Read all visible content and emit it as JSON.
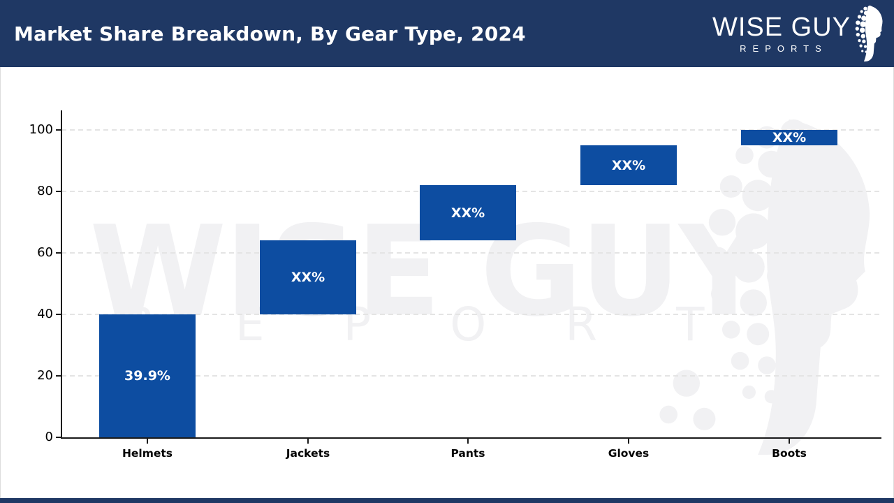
{
  "header": {
    "title": "Market Share Breakdown, By Gear Type, 2024",
    "background_color": "#1f3864",
    "logo": {
      "line1": "WISE GUY",
      "line2": "REPORTS"
    }
  },
  "watermark": {
    "line1": "WISE GUY",
    "line2": "R E P O R T S"
  },
  "footer": {
    "background_color": "#1f3864"
  },
  "chart_data": {
    "type": "bar",
    "subtype": "waterfall",
    "title": "Market Share Breakdown, By Gear Type, 2024",
    "categories": [
      "Helmets",
      "Jackets",
      "Pants",
      "Gloves",
      "Boots"
    ],
    "series": [
      {
        "name": "Market Share",
        "segments": [
          {
            "category": "Helmets",
            "start": 0,
            "end": 39.9,
            "label": "39.9%"
          },
          {
            "category": "Jackets",
            "start": 39.9,
            "end": 64,
            "label": "XX%"
          },
          {
            "category": "Pants",
            "start": 64,
            "end": 82,
            "label": "XX%"
          },
          {
            "category": "Gloves",
            "start": 82,
            "end": 95,
            "label": "XX%"
          },
          {
            "category": "Boots",
            "start": 95,
            "end": 100,
            "label": "XX%"
          }
        ]
      }
    ],
    "xlabel": "",
    "ylabel": "",
    "yticks": [
      0,
      20,
      40,
      60,
      80,
      100
    ],
    "ylim": [
      0,
      106
    ],
    "grid": "horizontal-dashed",
    "legend": "none",
    "bar_color": "#0d4da1",
    "bar_label_color": "#ffffff",
    "axis_color": "#1a1a1a",
    "gridline_color": "#e4e4e4"
  }
}
